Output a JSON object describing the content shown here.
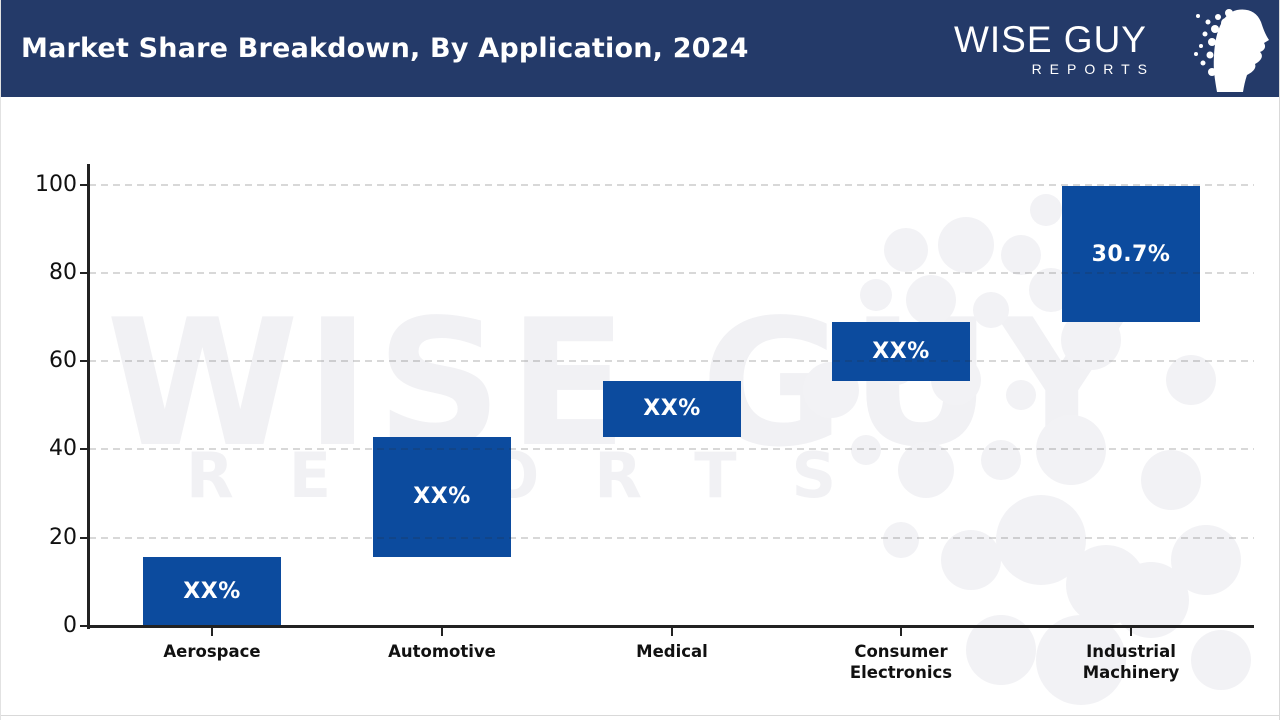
{
  "header": {
    "title": "Market Share Breakdown, By Application, 2024",
    "bg_color": "#243a69",
    "logo": {
      "line1": "WISE GUY",
      "line2": "REPORTS"
    }
  },
  "watermark": {
    "line1": "WISE GUY",
    "line2": "REPORTS"
  },
  "chart_data": {
    "type": "bar",
    "subtype": "floating-waterfall",
    "title": "Market Share Breakdown, By Application, 2024",
    "categories": [
      "Aerospace",
      "Automotive",
      "Medical",
      "Consumer Electronics",
      "Industrial Machinery"
    ],
    "category_lines": [
      [
        "Aerospace"
      ],
      [
        "Automotive"
      ],
      [
        "Medical"
      ],
      [
        "Consumer",
        "Electronics"
      ],
      [
        "Industrial",
        "Machinery"
      ]
    ],
    "segments": [
      {
        "category": "Aerospace",
        "start": 0,
        "end": 15.7,
        "value_label": "XX%"
      },
      {
        "category": "Automotive",
        "start": 15.7,
        "end": 42.9,
        "value_label": "XX%"
      },
      {
        "category": "Medical",
        "start": 42.9,
        "end": 55.6,
        "value_label": "XX%"
      },
      {
        "category": "Consumer Electronics",
        "start": 55.6,
        "end": 68.9,
        "value_label": "XX%"
      },
      {
        "category": "Industrial Machinery",
        "start": 68.9,
        "end": 99.6,
        "value_label": "30.7%"
      }
    ],
    "ylim": [
      0,
      100
    ],
    "yticks": [
      0,
      20,
      40,
      60,
      80,
      100
    ],
    "grid": "horizontal dashed, drawn over bars",
    "legend": "none",
    "bar_color": "#0c4b9e",
    "bar_label_color": "#ffffff",
    "axis_color": "#222222"
  }
}
